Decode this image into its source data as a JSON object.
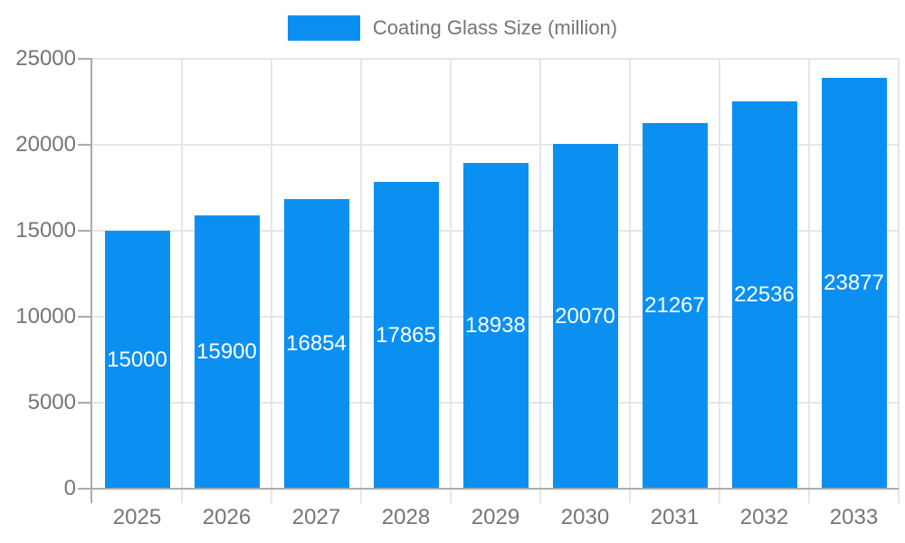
{
  "chart_data": {
    "type": "bar",
    "title": "",
    "legend_label": "Coating Glass Size (million)",
    "categories": [
      "2025",
      "2026",
      "2027",
      "2028",
      "2029",
      "2030",
      "2031",
      "2032",
      "2033"
    ],
    "values": [
      15000,
      15900,
      16854,
      17865,
      18938,
      20070,
      21267,
      22536,
      23877
    ],
    "xlabel": "",
    "ylabel": "",
    "ylim": [
      0,
      25000
    ],
    "yticks": [
      0,
      5000,
      10000,
      15000,
      20000,
      25000
    ],
    "grid": true,
    "legend_position": "top",
    "colors": {
      "bar": "#0b90f1",
      "value_label": "#ffffff",
      "axis_label": "#757575",
      "grid_line": "#e6e6e6",
      "axis_line": "#ababab"
    }
  }
}
